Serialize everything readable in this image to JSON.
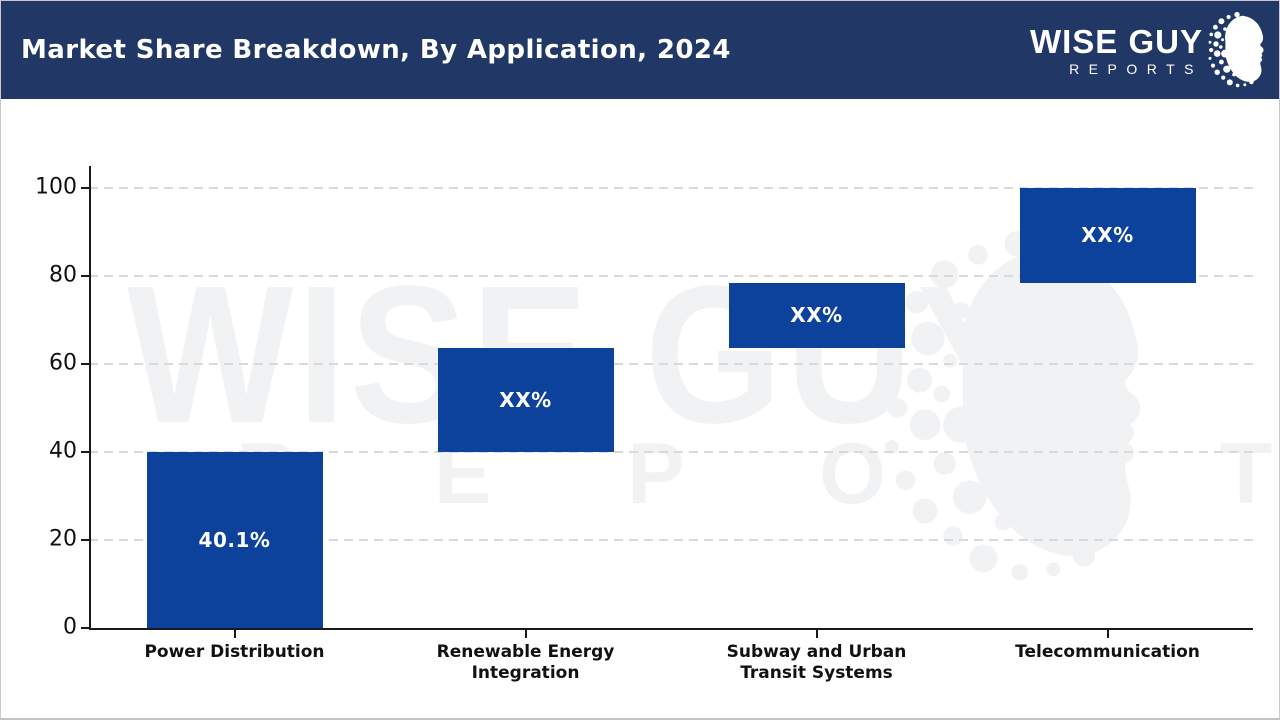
{
  "header": {
    "title": "Market Share Breakdown, By Application, 2024",
    "background_color": "#213766",
    "logo": {
      "brand_top": "WISE GUY",
      "brand_bottom": "REPORTS",
      "face_icon": "dotted-head-profile"
    }
  },
  "watermark": {
    "text_large": "WISE GUY",
    "text_small": "R E P O R T S",
    "face_icon": "dotted-head-profile",
    "color": "#f1f2f4"
  },
  "chart_data": {
    "type": "bar",
    "subtype": "waterfall",
    "title": "Market Share Breakdown, By Application, 2024",
    "categories": [
      "Power Distribution",
      "Renewable Energy\nIntegration",
      "Subway and Urban\nTransit Systems",
      "Telecommunication"
    ],
    "segments": [
      {
        "category": "Power Distribution",
        "start": 0,
        "end": 40.1,
        "label": "40.1%"
      },
      {
        "category": "Renewable Energy Integration",
        "start": 40.1,
        "end": 63.7,
        "label": "XX%"
      },
      {
        "category": "Subway and Urban Transit Systems",
        "start": 63.7,
        "end": 78.5,
        "label": "XX%"
      },
      {
        "category": "Telecommunication",
        "start": 78.5,
        "end": 100,
        "label": "XX%"
      }
    ],
    "ylim": [
      0,
      100
    ],
    "yticks": [
      0,
      20,
      40,
      60,
      80,
      100
    ],
    "xlabel": "",
    "ylabel": "",
    "legend": "none",
    "grid": "horizontal-dashed",
    "bar_color": "#0c429c",
    "bar_label_color": "#ffffff",
    "axis_color": "#1a1a1a",
    "gridline_color": "#d9d9d9"
  }
}
